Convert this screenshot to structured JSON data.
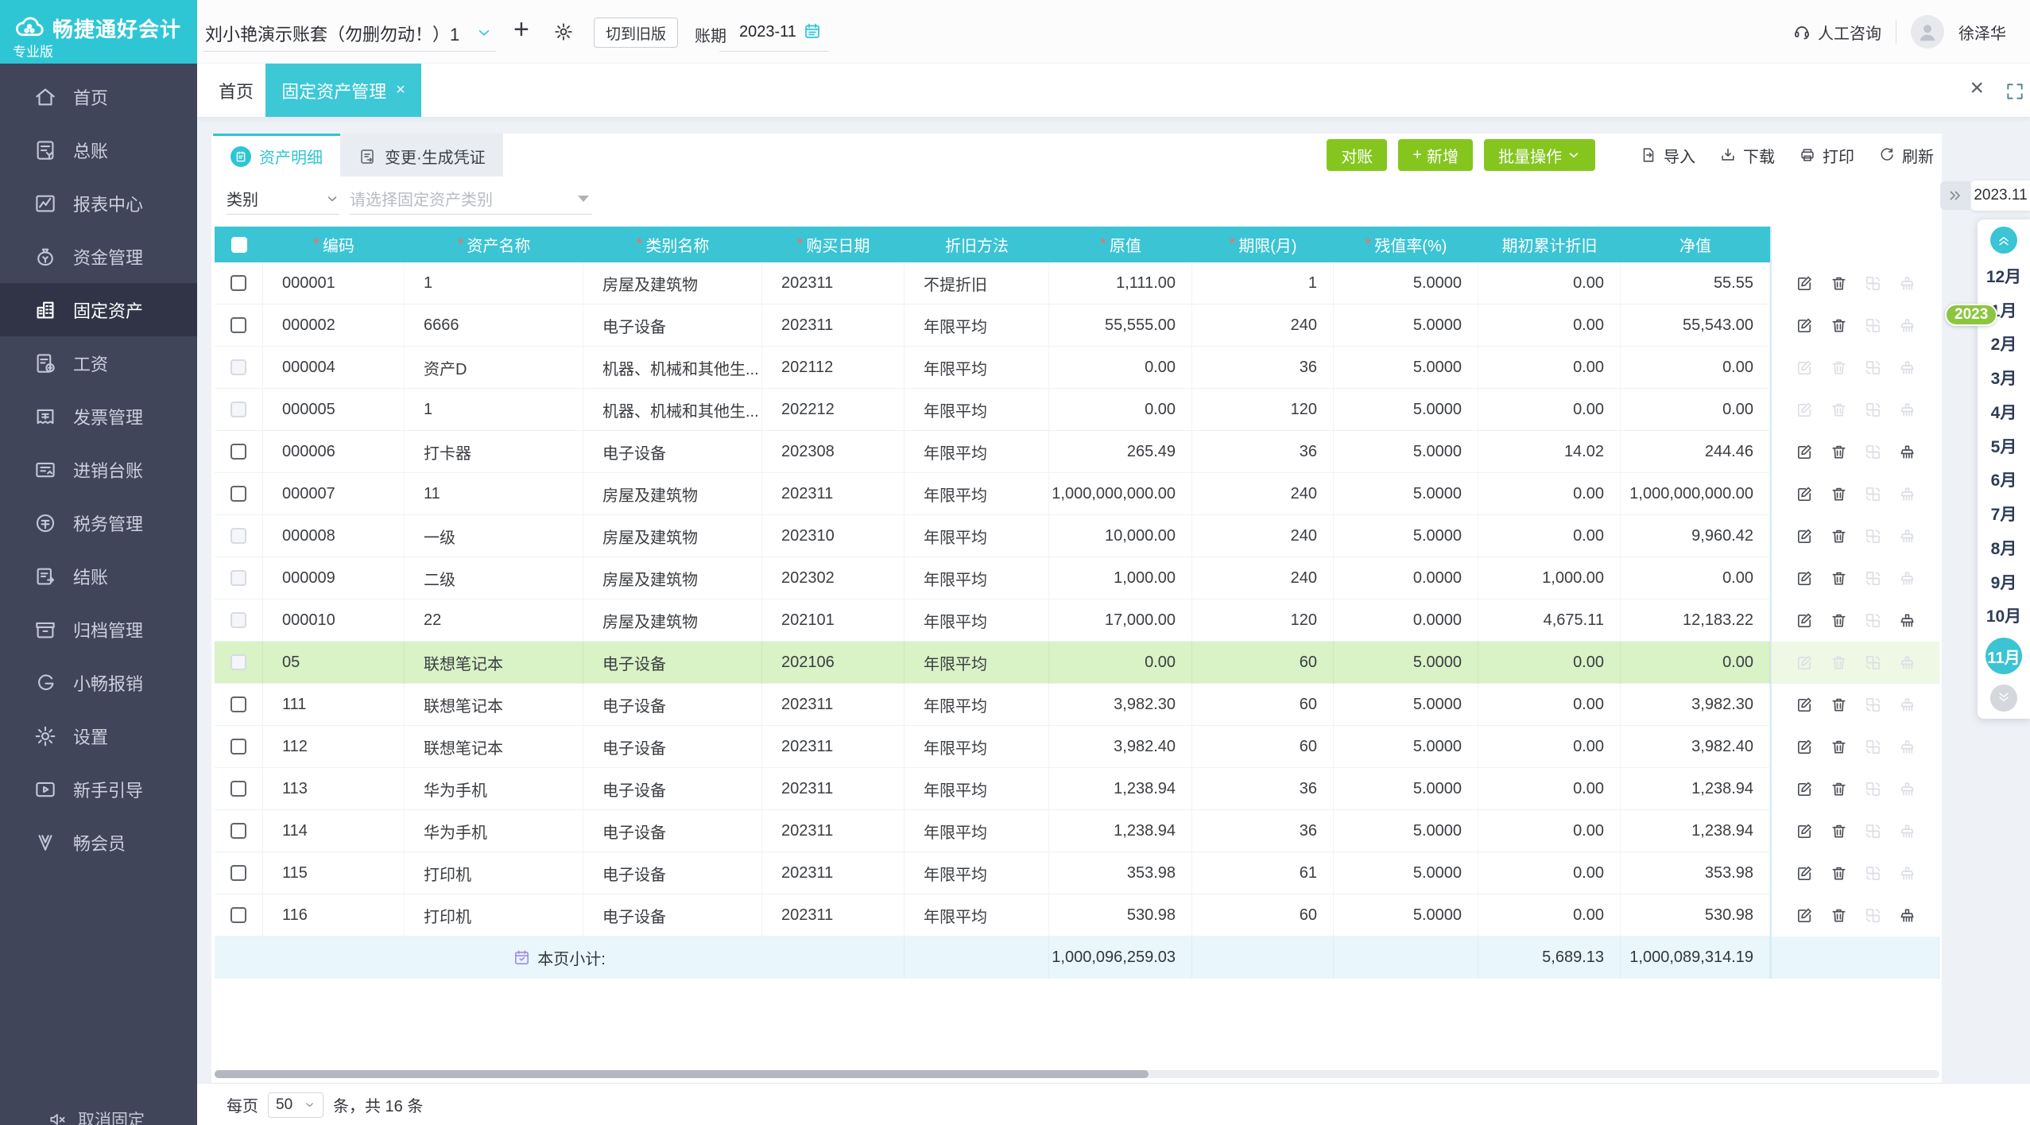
{
  "brand": {
    "name": "畅捷通好会计",
    "edition": "专业版"
  },
  "header": {
    "account": "刘小艳演示账套（勿删勿动！）1",
    "switch_old": "切到旧版",
    "period_label": "账期",
    "period": "2023-11",
    "support": "人工咨询",
    "user": "徐泽华"
  },
  "tabs": [
    {
      "label": "首页",
      "active": false
    },
    {
      "label": "固定资产管理",
      "active": true,
      "closable": true
    }
  ],
  "sidebar": {
    "items": [
      {
        "icon": "home",
        "label": "首页",
        "active": false
      },
      {
        "icon": "ledger",
        "label": "总账",
        "active": false
      },
      {
        "icon": "report",
        "label": "报表中心",
        "active": false
      },
      {
        "icon": "funds",
        "label": "资金管理",
        "active": false
      },
      {
        "icon": "asset",
        "label": "固定资产",
        "active": true
      },
      {
        "icon": "salary",
        "label": "工资",
        "active": false
      },
      {
        "icon": "invoice",
        "label": "发票管理",
        "active": false
      },
      {
        "icon": "trade",
        "label": "进销台账",
        "active": false
      },
      {
        "icon": "tax",
        "label": "税务管理",
        "active": false
      },
      {
        "icon": "closing",
        "label": "结账",
        "active": false
      },
      {
        "icon": "archive",
        "label": "归档管理",
        "active": false
      },
      {
        "icon": "reimburse",
        "label": "小畅报销",
        "active": false
      },
      {
        "icon": "settings",
        "label": "设置",
        "active": false
      },
      {
        "icon": "guide",
        "label": "新手引导",
        "active": false
      },
      {
        "icon": "member",
        "label": "畅会员",
        "active": false
      }
    ],
    "footer": "取消固定"
  },
  "subtabs": [
    {
      "label": "资产明细",
      "active": true
    },
    {
      "label": "变更·生成凭证",
      "active": false
    }
  ],
  "toolbar": {
    "reconcile": "对账",
    "add": "新增",
    "batch": "批量操作",
    "links": [
      {
        "icon": "import",
        "label": "导入"
      },
      {
        "icon": "download",
        "label": "下载"
      },
      {
        "icon": "print",
        "label": "打印"
      },
      {
        "icon": "refresh",
        "label": "刷新"
      }
    ]
  },
  "filter": {
    "label": "类别",
    "placeholder": "请选择固定资产类别"
  },
  "table": {
    "columns": [
      {
        "key": "code",
        "label": "编码",
        "required": true
      },
      {
        "key": "name",
        "label": "资产名称",
        "required": true
      },
      {
        "key": "category",
        "label": "类别名称",
        "required": true
      },
      {
        "key": "buy_date",
        "label": "购买日期",
        "required": true
      },
      {
        "key": "method",
        "label": "折旧方法",
        "required": false
      },
      {
        "key": "original",
        "label": "原值",
        "required": true
      },
      {
        "key": "months",
        "label": "期限(月)",
        "required": true
      },
      {
        "key": "residual",
        "label": "残值率(%)",
        "required": true
      },
      {
        "key": "accum",
        "label": "期初累计折旧",
        "required": false
      },
      {
        "key": "net",
        "label": "净值",
        "required": false
      },
      {
        "key": "ops",
        "label": "操作",
        "required": false
      }
    ],
    "rows": [
      {
        "code": "000001",
        "name": "1",
        "category": "房屋及建筑物",
        "buy_date": "202311",
        "method": "不提折旧",
        "original": "1,111.00",
        "months": "1",
        "residual": "5.0000",
        "accum": "0.00",
        "net": "55.55",
        "checkbox_enabled": true,
        "ops_enabled": [
          true,
          true,
          false,
          false
        ],
        "highlight": false
      },
      {
        "code": "000002",
        "name": "6666",
        "category": "电子设备",
        "buy_date": "202311",
        "method": "年限平均",
        "original": "55,555.00",
        "months": "240",
        "residual": "5.0000",
        "accum": "0.00",
        "net": "55,543.00",
        "checkbox_enabled": true,
        "ops_enabled": [
          true,
          true,
          false,
          false
        ],
        "highlight": false
      },
      {
        "code": "000004",
        "name": "资产D",
        "category": "机器、机械和其他生...",
        "buy_date": "202112",
        "method": "年限平均",
        "original": "0.00",
        "months": "36",
        "residual": "5.0000",
        "accum": "0.00",
        "net": "0.00",
        "checkbox_enabled": false,
        "ops_enabled": [
          false,
          false,
          false,
          false
        ],
        "highlight": false
      },
      {
        "code": "000005",
        "name": "1",
        "category": "机器、机械和其他生...",
        "buy_date": "202212",
        "method": "年限平均",
        "original": "0.00",
        "months": "120",
        "residual": "5.0000",
        "accum": "0.00",
        "net": "0.00",
        "checkbox_enabled": false,
        "ops_enabled": [
          false,
          false,
          false,
          false
        ],
        "highlight": false
      },
      {
        "code": "000006",
        "name": "打卡器",
        "category": "电子设备",
        "buy_date": "202308",
        "method": "年限平均",
        "original": "265.49",
        "months": "36",
        "residual": "5.0000",
        "accum": "14.02",
        "net": "244.46",
        "checkbox_enabled": true,
        "ops_enabled": [
          true,
          true,
          false,
          true
        ],
        "highlight": false
      },
      {
        "code": "000007",
        "name": "11",
        "category": "房屋及建筑物",
        "buy_date": "202311",
        "method": "年限平均",
        "original": "1,000,000,000.00",
        "months": "240",
        "residual": "5.0000",
        "accum": "0.00",
        "net": "1,000,000,000.00",
        "checkbox_enabled": true,
        "ops_enabled": [
          true,
          true,
          false,
          false
        ],
        "highlight": false
      },
      {
        "code": "000008",
        "name": "一级",
        "category": "房屋及建筑物",
        "buy_date": "202310",
        "method": "年限平均",
        "original": "10,000.00",
        "months": "240",
        "residual": "5.0000",
        "accum": "0.00",
        "net": "9,960.42",
        "checkbox_enabled": false,
        "ops_enabled": [
          true,
          true,
          false,
          false
        ],
        "highlight": false
      },
      {
        "code": "000009",
        "name": "二级",
        "category": "房屋及建筑物",
        "buy_date": "202302",
        "method": "年限平均",
        "original": "1,000.00",
        "months": "240",
        "residual": "0.0000",
        "accum": "1,000.00",
        "net": "0.00",
        "checkbox_enabled": false,
        "ops_enabled": [
          true,
          true,
          false,
          false
        ],
        "highlight": false
      },
      {
        "code": "000010",
        "name": "22",
        "category": "房屋及建筑物",
        "buy_date": "202101",
        "method": "年限平均",
        "original": "17,000.00",
        "months": "120",
        "residual": "0.0000",
        "accum": "4,675.11",
        "net": "12,183.22",
        "checkbox_enabled": false,
        "ops_enabled": [
          true,
          true,
          false,
          true
        ],
        "highlight": false
      },
      {
        "code": "05",
        "name": "联想笔记本",
        "category": "电子设备",
        "buy_date": "202106",
        "method": "年限平均",
        "original": "0.00",
        "months": "60",
        "residual": "5.0000",
        "accum": "0.00",
        "net": "0.00",
        "checkbox_enabled": false,
        "ops_enabled": [
          false,
          false,
          false,
          false
        ],
        "highlight": true
      },
      {
        "code": "111",
        "name": "联想笔记本",
        "category": "电子设备",
        "buy_date": "202311",
        "method": "年限平均",
        "original": "3,982.30",
        "months": "60",
        "residual": "5.0000",
        "accum": "0.00",
        "net": "3,982.30",
        "checkbox_enabled": true,
        "ops_enabled": [
          true,
          true,
          false,
          false
        ],
        "highlight": false
      },
      {
        "code": "112",
        "name": "联想笔记本",
        "category": "电子设备",
        "buy_date": "202311",
        "method": "年限平均",
        "original": "3,982.40",
        "months": "60",
        "residual": "5.0000",
        "accum": "0.00",
        "net": "3,982.40",
        "checkbox_enabled": true,
        "ops_enabled": [
          true,
          true,
          false,
          false
        ],
        "highlight": false
      },
      {
        "code": "113",
        "name": "华为手机",
        "category": "电子设备",
        "buy_date": "202311",
        "method": "年限平均",
        "original": "1,238.94",
        "months": "36",
        "residual": "5.0000",
        "accum": "0.00",
        "net": "1,238.94",
        "checkbox_enabled": true,
        "ops_enabled": [
          true,
          true,
          false,
          false
        ],
        "highlight": false
      },
      {
        "code": "114",
        "name": "华为手机",
        "category": "电子设备",
        "buy_date": "202311",
        "method": "年限平均",
        "original": "1,238.94",
        "months": "36",
        "residual": "5.0000",
        "accum": "0.00",
        "net": "1,238.94",
        "checkbox_enabled": true,
        "ops_enabled": [
          true,
          true,
          false,
          false
        ],
        "highlight": false
      },
      {
        "code": "115",
        "name": "打印机",
        "category": "电子设备",
        "buy_date": "202311",
        "method": "年限平均",
        "original": "353.98",
        "months": "61",
        "residual": "5.0000",
        "accum": "0.00",
        "net": "353.98",
        "checkbox_enabled": true,
        "ops_enabled": [
          true,
          true,
          false,
          false
        ],
        "highlight": false
      },
      {
        "code": "116",
        "name": "打印机",
        "category": "电子设备",
        "buy_date": "202311",
        "method": "年限平均",
        "original": "530.98",
        "months": "60",
        "residual": "5.0000",
        "accum": "0.00",
        "net": "530.98",
        "checkbox_enabled": true,
        "ops_enabled": [
          true,
          true,
          false,
          true
        ],
        "highlight": false
      }
    ],
    "op_labels": [
      "edit",
      "delete",
      "transfer",
      "clean"
    ],
    "summary": {
      "label": "本页小计:",
      "original": "1,000,096,259.03",
      "accum": "5,689.13",
      "net": "1,000,089,314.19"
    }
  },
  "pagination": {
    "per_page_label": "每页",
    "per_page": "50",
    "total_label": "条，共 16 条"
  },
  "calendar": {
    "label": "2023.11",
    "year_badge": "2023",
    "months": [
      "12月",
      "1月",
      "2月",
      "3月",
      "4月",
      "5月",
      "6月",
      "7月",
      "8月",
      "9月",
      "10月",
      "11月"
    ],
    "selected": "11月"
  },
  "colors": {
    "teal": "#3bc4d3",
    "green_button": "#85c61e",
    "sidebar_bg": "#40455a",
    "row_highlight": "#d9f2c6",
    "summary_bg": "#e9f6fc",
    "required_red": "#ff6a5c",
    "year_badge_green": "#8cc63e"
  }
}
